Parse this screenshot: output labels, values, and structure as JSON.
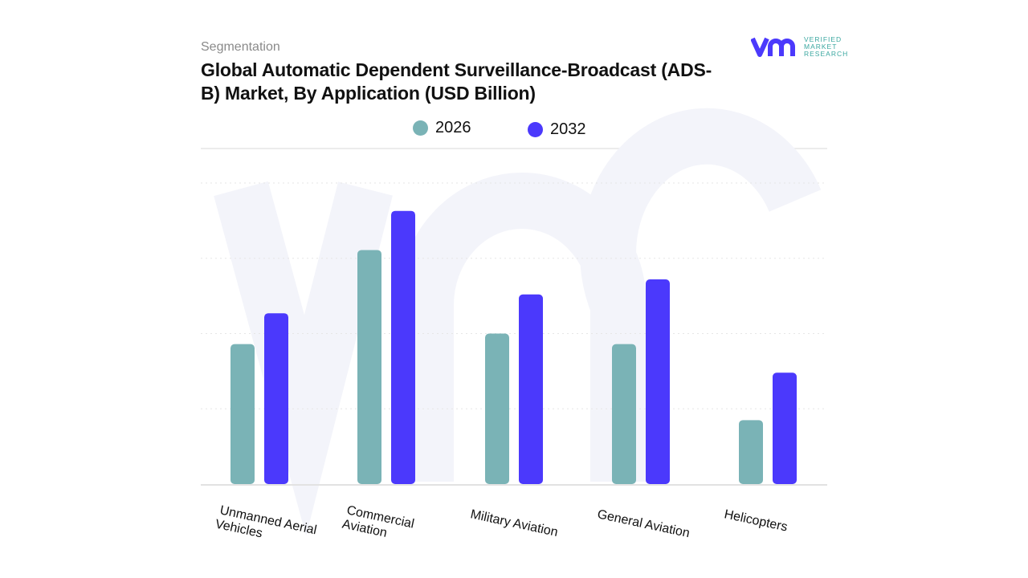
{
  "header": {
    "segment_label": "Segmentation",
    "title": "Global Automatic Dependent Surveillance-Broadcast (ADS-B) Market, By Application (USD Billion)"
  },
  "logo": {
    "mark": "vmr",
    "text": [
      "VERIFIED",
      "MARKET",
      "RESEARCH"
    ]
  },
  "colors": {
    "2026": "#7ab3b6",
    "2032": "#4b39fc",
    "grid": "#e6e6e6",
    "watermark": "#f3f4fa"
  },
  "chart_data": {
    "type": "bar",
    "title": "Global Automatic Dependent Surveillance-Broadcast (ADS-B) Market, By Application (USD Billion)",
    "categories": [
      "Unmanned Aerial Vehicles",
      "Commercial Aviation",
      "Military Aviation",
      "General Aviation",
      "Helicopters"
    ],
    "category_lines": [
      [
        "Unmanned Aerial",
        "Vehicles"
      ],
      [
        "Commercial",
        "Aviation"
      ],
      [
        "Military Aviation"
      ],
      [
        "General Aviation"
      ],
      [
        "Helicopters"
      ]
    ],
    "series": [
      {
        "name": "2026",
        "color": "#7ab3b6",
        "values": [
          1.86,
          3.11,
          2.0,
          1.86,
          0.85
        ]
      },
      {
        "name": "2032",
        "color": "#4b39fc",
        "values": [
          2.27,
          3.63,
          2.52,
          2.72,
          1.48
        ]
      }
    ],
    "ylim": [
      0,
      4
    ],
    "y_ticks_shown": false,
    "grid": true,
    "legend_position": "top-center",
    "xlabel": "",
    "ylabel": ""
  }
}
